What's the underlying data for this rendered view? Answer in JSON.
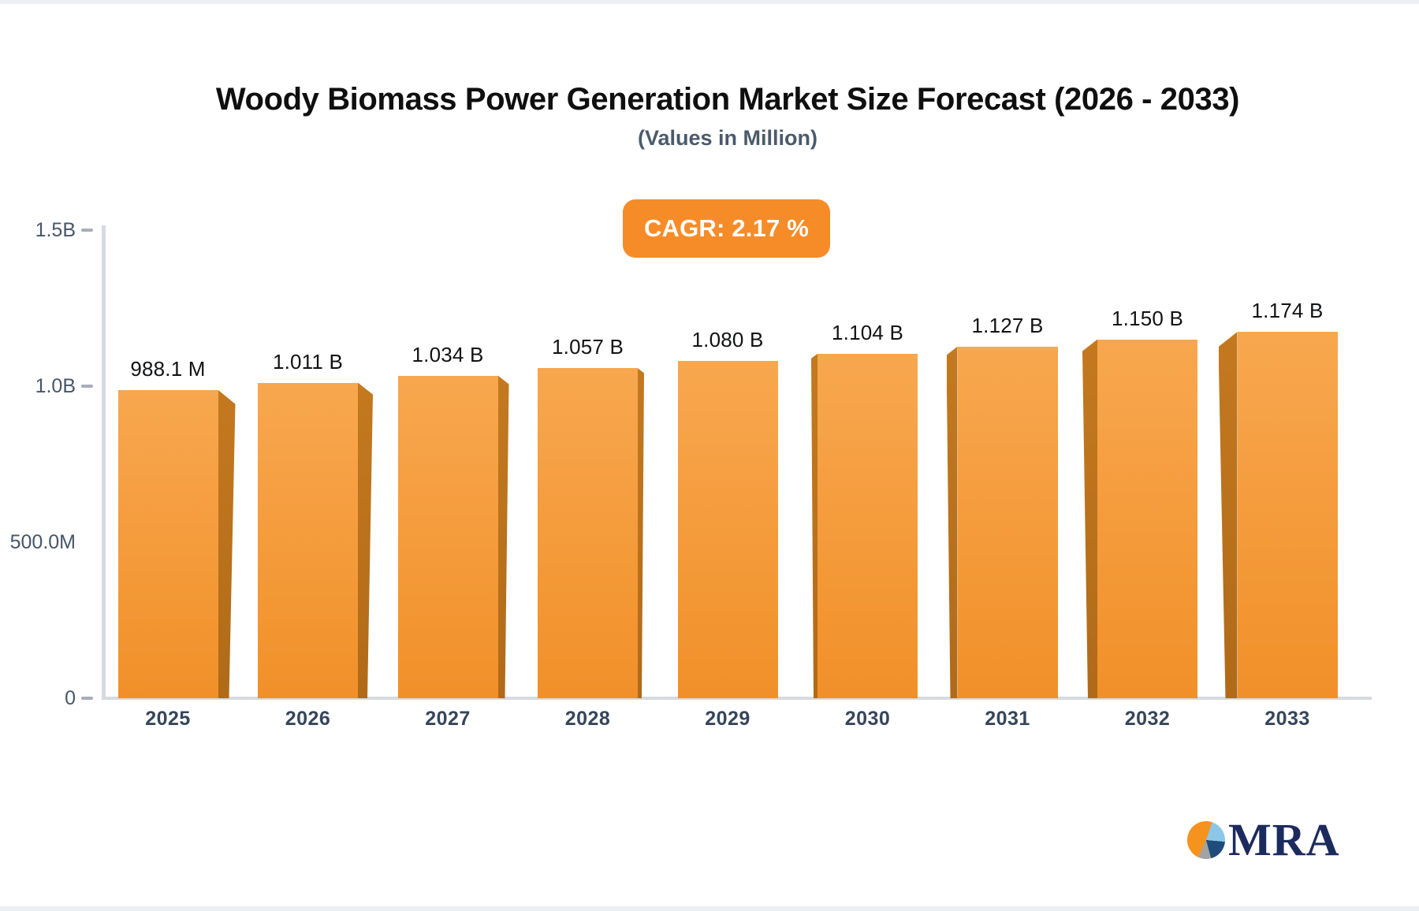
{
  "header": {
    "title": "Woody Biomass Power Generation Market Size Forecast (2026 - 2033)",
    "subtitle": "(Values in Million)"
  },
  "cagr_badge": {
    "label": "CAGR: 2.17 %"
  },
  "chart_data": {
    "type": "bar",
    "title": "Woody Biomass Power Generation Market Size Forecast (2026 - 2033)",
    "subtitle": "(Values in Million)",
    "cagr_percent": 2.17,
    "categories": [
      "2025",
      "2026",
      "2027",
      "2028",
      "2029",
      "2030",
      "2031",
      "2032",
      "2033"
    ],
    "values_million": [
      988.1,
      1011,
      1034,
      1057,
      1080,
      1104,
      1127,
      1150,
      1174
    ],
    "value_labels": [
      "988.1 M",
      "1.011 B",
      "1.034 B",
      "1.057 B",
      "1.080 B",
      "1.104 B",
      "1.127 B",
      "1.150 B",
      "1.174 B"
    ],
    "ylim_million": [
      0,
      1500
    ],
    "y_axis_ticks": [
      {
        "label": "1.5B",
        "value_million": 1500,
        "dash": true
      },
      {
        "label": "1.0B",
        "value_million": 1000,
        "dash": true
      },
      {
        "label": "500.0M",
        "value_million": 500,
        "dash": false
      },
      {
        "label": "0",
        "value_million": 0,
        "dash": true
      }
    ],
    "grid": false,
    "legend": false,
    "bar_style": "3d-perspective-toward-center"
  },
  "colors": {
    "badge_bg": "#F68C28",
    "badge_text": "#FFFFFF",
    "bar_face_top": "#F8A74F",
    "bar_face_bottom": "#F19029",
    "bar_side_top": "#C4791F",
    "bar_side_bottom": "#B06A18",
    "axis_line": "#D7DADF",
    "axis_label": "#46566A",
    "x_label": "#36455A",
    "value_label": "#111214"
  },
  "logo": {
    "text": "MRA",
    "text_color": "#1C2B5E",
    "pie_orange": "#F6921E",
    "pie_lightblue": "#8CC7E9",
    "pie_navy": "#1F4C7A",
    "pie_gray": "#A3A3A3"
  }
}
